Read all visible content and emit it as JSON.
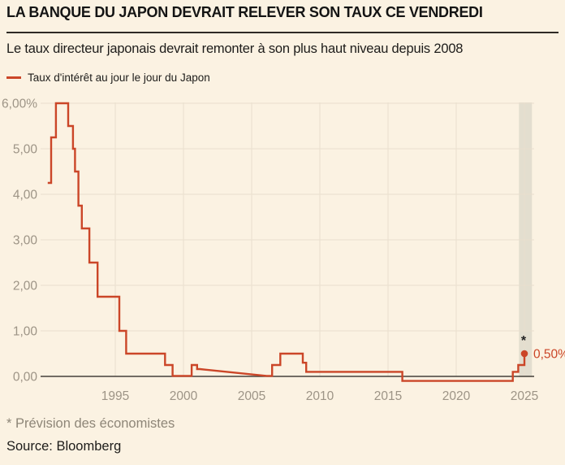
{
  "header": {
    "title": "LA BANQUE DU JAPON DEVRAIT RELEVER SON TAUX CE VENDREDI",
    "subtitle": "Le taux directeur japonais devrait remonter à son plus haut niveau depuis 2008"
  },
  "legend": {
    "label": "Taux d'intérêt au jour le jour du Japon"
  },
  "footer": {
    "footnote": "* Prévision des économistes",
    "source": "Source: Bloomberg"
  },
  "colors": {
    "background": "#fbf2e2",
    "line": "#cb4628",
    "grid": "#e9dfce",
    "zero_line": "#45403a",
    "axis_text": "#9d9486",
    "forecast_band": "#ddd8cb",
    "annotation": "#222222",
    "title_text": "#141414",
    "body_text": "#1d1c1a",
    "muted_text": "#8e8678",
    "divider": "#2e2a25"
  },
  "chart_data": {
    "type": "line",
    "title": "Taux d'intérêt au jour le jour du Japon",
    "xlabel": "",
    "ylabel": "",
    "x_range": [
      1990,
      2025.6
    ],
    "y_range": [
      -0.15,
      6.1
    ],
    "grid": true,
    "legend_position": "top-left-above-chart",
    "x_ticks": [
      {
        "value": 1995,
        "label": "1995"
      },
      {
        "value": 2000,
        "label": "2000"
      },
      {
        "value": 2005,
        "label": "2005"
      },
      {
        "value": 2010,
        "label": "2010"
      },
      {
        "value": 2015,
        "label": "2015"
      },
      {
        "value": 2020,
        "label": "2020"
      },
      {
        "value": 2025,
        "label": "2025"
      }
    ],
    "y_ticks": [
      {
        "value": 6,
        "label": "6,00%"
      },
      {
        "value": 5,
        "label": "5,00"
      },
      {
        "value": 4,
        "label": "4,00"
      },
      {
        "value": 3,
        "label": "3,00"
      },
      {
        "value": 2,
        "label": "2,00"
      },
      {
        "value": 1,
        "label": "1,00"
      },
      {
        "value": 0,
        "label": "0,00"
      }
    ],
    "series": [
      {
        "name": "Taux d'intérêt au jour le jour du Japon",
        "unit": "%",
        "step_points": [
          [
            1990.05,
            4.25
          ],
          [
            1990.3,
            4.25
          ],
          [
            1990.3,
            5.25
          ],
          [
            1990.65,
            5.25
          ],
          [
            1990.65,
            6.0
          ],
          [
            1991.55,
            6.0
          ],
          [
            1991.55,
            5.5
          ],
          [
            1991.9,
            5.5
          ],
          [
            1991.9,
            5.0
          ],
          [
            1992.05,
            5.0
          ],
          [
            1992.05,
            4.5
          ],
          [
            1992.3,
            4.5
          ],
          [
            1992.3,
            3.75
          ],
          [
            1992.55,
            3.75
          ],
          [
            1992.55,
            3.25
          ],
          [
            1993.1,
            3.25
          ],
          [
            1993.1,
            2.5
          ],
          [
            1993.7,
            2.5
          ],
          [
            1993.7,
            1.75
          ],
          [
            1995.3,
            1.75
          ],
          [
            1995.3,
            1.0
          ],
          [
            1995.8,
            1.0
          ],
          [
            1995.8,
            0.5
          ],
          [
            1998.65,
            0.5
          ],
          [
            1998.65,
            0.25
          ],
          [
            1999.2,
            0.25
          ],
          [
            1999.2,
            0.01
          ],
          [
            2000.6,
            0.01
          ],
          [
            2000.6,
            0.25
          ],
          [
            2001.0,
            0.25
          ],
          [
            2001.0,
            0.16
          ],
          [
            2001.2,
            0.16
          ],
          [
            2006.1,
            0.01
          ],
          [
            2006.5,
            0.01
          ],
          [
            2006.5,
            0.25
          ],
          [
            2007.1,
            0.25
          ],
          [
            2007.1,
            0.5
          ],
          [
            2008.75,
            0.5
          ],
          [
            2008.75,
            0.3
          ],
          [
            2009.0,
            0.3
          ],
          [
            2009.0,
            0.1
          ],
          [
            2016.05,
            0.1
          ],
          [
            2016.05,
            -0.1
          ],
          [
            2024.15,
            -0.1
          ],
          [
            2024.15,
            0.1
          ],
          [
            2024.55,
            0.1
          ],
          [
            2024.55,
            0.25
          ],
          [
            2025.0,
            0.25
          ],
          [
            2025.0,
            0.5
          ]
        ]
      }
    ],
    "end_point": {
      "x": 2025.0,
      "y": 0.5,
      "label": "0,50%",
      "annotation_symbol": "*"
    },
    "forecast_band": {
      "x_start": 2024.6,
      "x_end": 2025.55
    }
  }
}
